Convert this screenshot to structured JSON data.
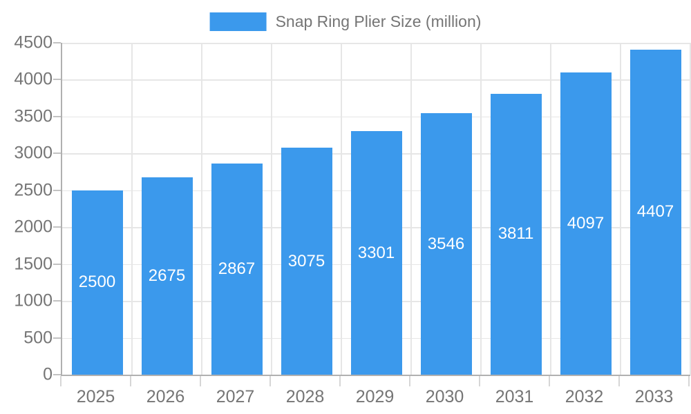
{
  "chart_data": {
    "type": "bar",
    "title": "",
    "xlabel": "",
    "ylabel": "",
    "legend": {
      "position": "top",
      "entries": [
        "Snap Ring Plier Size (million)"
      ]
    },
    "categories": [
      "2025",
      "2026",
      "2027",
      "2028",
      "2029",
      "2030",
      "2031",
      "2032",
      "2033"
    ],
    "series": [
      {
        "name": "Snap Ring Plier Size (million)",
        "values": [
          2500,
          2675,
          2867,
          3075,
          3301,
          3546,
          3811,
          4097,
          4407
        ]
      }
    ],
    "value_labels": "inside-center",
    "ylim": [
      0,
      4500
    ],
    "ytick_step": 500,
    "yticks": [
      0,
      500,
      1000,
      1500,
      2000,
      2500,
      3000,
      3500,
      4000,
      4500
    ],
    "grid": true,
    "colors": {
      "bar": "#3b99ec",
      "grid": "#e6e6e6",
      "axis": "#b0b0b0",
      "tick_text": "#757575",
      "value_text": "#ffffff",
      "background": "#ffffff"
    }
  }
}
